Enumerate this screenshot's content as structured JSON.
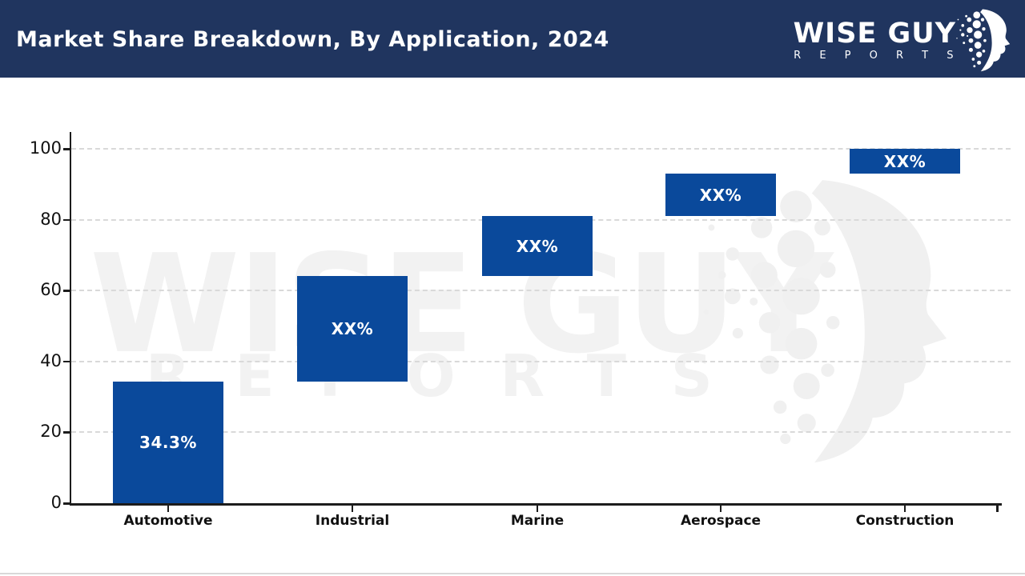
{
  "header": {
    "title": "Market Share Breakdown, By Application, 2024",
    "logo": {
      "line1": "WISE GUY",
      "line2": "R E P O R T S"
    }
  },
  "watermark": {
    "line1": "WISE GUY",
    "line2": "REPORTS"
  },
  "colors": {
    "header_bg": "#20355f",
    "bar": "#0a499b",
    "bar_label": "#ffffff",
    "watermark": "#f2f2f2",
    "grid": "#d9d9d9",
    "axis": "#1c1c1c"
  },
  "chart_data": {
    "type": "bar",
    "subtype": "waterfall",
    "title": "Market Share Breakdown, By Application, 2024",
    "categories": [
      "Automotive",
      "Industrial",
      "Marine",
      "Aerospace",
      "Construction"
    ],
    "segments": [
      {
        "category": "Automotive",
        "start": 0,
        "end": 34.3,
        "label": "34.3%"
      },
      {
        "category": "Industrial",
        "start": 34.3,
        "end": 64,
        "label": "XX%"
      },
      {
        "category": "Marine",
        "start": 64,
        "end": 81,
        "label": "XX%"
      },
      {
        "category": "Aerospace",
        "start": 81,
        "end": 93,
        "label": "XX%"
      },
      {
        "category": "Construction",
        "start": 93,
        "end": 100,
        "label": "XX%"
      }
    ],
    "y_ticks": [
      0,
      20,
      40,
      60,
      80,
      100
    ],
    "ylim": [
      0,
      105
    ],
    "xlabel": "",
    "ylabel": "",
    "grid": "horizontal-dashed",
    "legend": "none"
  }
}
